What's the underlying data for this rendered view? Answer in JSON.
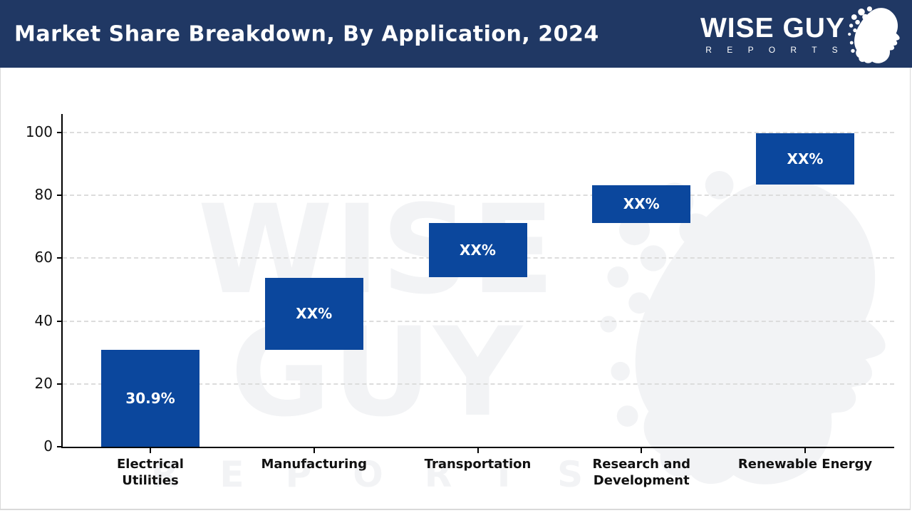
{
  "header": {
    "title": "Market Share Breakdown, By Application, 2024",
    "logo": {
      "name": "WISE GUY",
      "subname": "R E P O R T S"
    }
  },
  "watermark": {
    "line1": "WISE GUY",
    "line2": "REPORTS"
  },
  "chart_data": {
    "type": "bar",
    "variant": "waterfall",
    "title": "Market Share Breakdown, By Application, 2024",
    "categories": [
      "Electrical Utilities",
      "Manufacturing",
      "Transportation",
      "Research and Development",
      "Renewable Energy"
    ],
    "categories_display": [
      [
        "Electrical",
        "Utilities"
      ],
      [
        "Manufacturing"
      ],
      [
        "Transportation"
      ],
      [
        "Research and",
        "Development"
      ],
      [
        "Renewable Energy"
      ]
    ],
    "segments": [
      {
        "category": "Electrical Utilities",
        "start": 0,
        "end": 30.9,
        "label": "30.9%"
      },
      {
        "category": "Manufacturing",
        "start": 30.9,
        "end": 53.7,
        "label": "XX%"
      },
      {
        "category": "Transportation",
        "start": 53.9,
        "end": 71.3,
        "label": "XX%"
      },
      {
        "category": "Research and Development",
        "start": 71.3,
        "end": 83.2,
        "label": "XX%"
      },
      {
        "category": "Renewable Energy",
        "start": 83.5,
        "end": 99.8,
        "label": "XX%"
      }
    ],
    "ylim": [
      0,
      100
    ],
    "yticks": [
      0,
      20,
      40,
      60,
      80,
      100
    ],
    "xlabel": "",
    "ylabel": "",
    "grid": "horizontal-dashed",
    "legend": "none",
    "bar_color": "#0b479d",
    "bar_label_color": "#ffffff",
    "axis_color": "#000000",
    "gridline_color": "#dcdcdc"
  },
  "colors": {
    "header_bg": "#203864",
    "card_bg": "#ffffff",
    "card_border": "#d9d9d9",
    "watermark": "#f2f3f5"
  }
}
